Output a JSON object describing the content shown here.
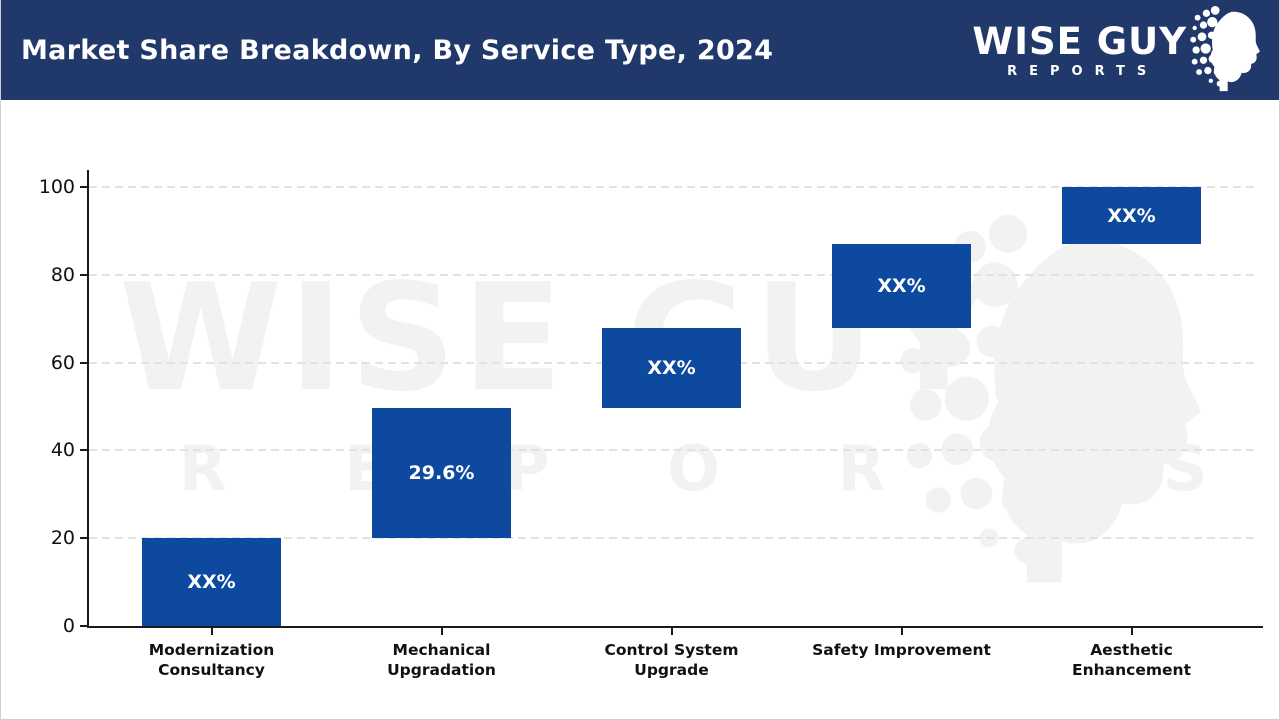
{
  "header": {
    "title": "Market Share Breakdown, By Service Type, 2024",
    "bg_color": "#21386B",
    "logo": {
      "line1": "WISE GUY",
      "line2": "REPORTS",
      "icon": "dotted-head-profile-icon"
    }
  },
  "watermark": {
    "line1": "WISE GUY",
    "line2": "R E P O R T S",
    "color": "#F2F2F2",
    "icon": "dotted-head-profile-icon"
  },
  "chart_data": {
    "type": "bar",
    "subtype": "waterfall",
    "title": "Market Share Breakdown, By Service Type, 2024",
    "categories": [
      "Modernization Consultancy",
      "Mechanical Upgradation",
      "Control System Upgrade",
      "Safety Improvement",
      "Aesthetic Enhancement"
    ],
    "category_label_lines": [
      [
        "Modernization",
        "Consultancy"
      ],
      [
        "Mechanical",
        "Upgradation"
      ],
      [
        "Control System",
        "Upgrade"
      ],
      [
        "Safety Improvement"
      ],
      [
        "Aesthetic",
        "Enhancement"
      ]
    ],
    "segments": [
      {
        "start": 0,
        "end": 20
      },
      {
        "start": 20,
        "end": 49.6
      },
      {
        "start": 49.6,
        "end": 67.8
      },
      {
        "start": 67.8,
        "end": 87
      },
      {
        "start": 87,
        "end": 100
      }
    ],
    "bar_labels": [
      "XX%",
      "29.6%",
      "XX%",
      "XX%",
      "XX%"
    ],
    "yticks": [
      0,
      20,
      40,
      60,
      80,
      100
    ],
    "ylim": [
      0,
      100
    ],
    "grid": "horizontal-dashed",
    "legend": "none",
    "bar_color": "#0D4A9F",
    "bar_label_color": "#FFFFFF",
    "axis_color": "#1A1A1A",
    "gridline_color": "#E2E2E2",
    "tick_label_color": "#111111"
  }
}
